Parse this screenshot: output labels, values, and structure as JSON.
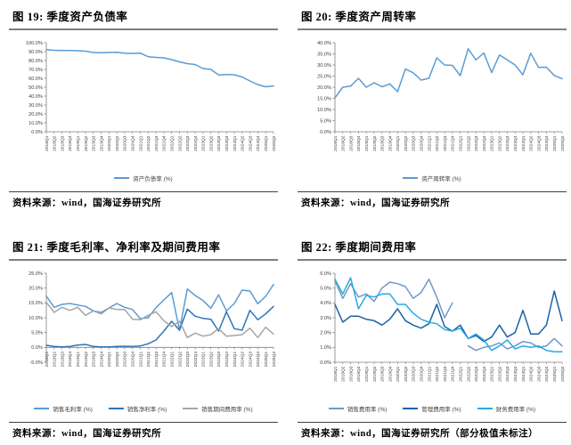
{
  "quarters": [
    "2018Q1",
    "2018Q2",
    "2018Q3",
    "2018Q4",
    "2019Q1",
    "2019Q2",
    "2019Q3",
    "2019Q4",
    "2020Q1",
    "2020Q2",
    "2020Q3",
    "2020Q4",
    "2021Q1",
    "2021Q2",
    "2021Q3",
    "2021Q4",
    "2022Q1",
    "2022Q2",
    "2022Q3",
    "2022Q4",
    "2023Q1",
    "2023Q2",
    "2023Q3",
    "2023Q4",
    "2024Q1",
    "2024Q2",
    "2024Q3",
    "2024Q4",
    "2025Q1",
    "2025Q2"
  ],
  "panels": [
    {
      "title": "图 19:  季度资产负债率",
      "source": "资料来源：wind，国海证券研究所"
    },
    {
      "title": "图 20:  季度资产周转率",
      "source": "资料来源：wind，国海证券研究所"
    },
    {
      "title": "图 21:  季度毛利率、净利率及期间费用率",
      "source": "资料来源：wind，国海证券研究所"
    },
    {
      "title": "图 22:  季度期间费用率",
      "source": "资料来源：wind，国海证券研究所（部分极值未标注）"
    }
  ],
  "colors": {
    "light_blue": "#5B9BD5",
    "dark_blue": "#2E75B6",
    "gray": "#A5A5A5",
    "steel_blue": "#7297C9",
    "navy_blue": "#1A62A8",
    "cyan_blue": "#29ABE2",
    "axis": "#808080",
    "tick_text": "#404040"
  },
  "chart_data": [
    {
      "type": "line",
      "title": "季度资产负债率",
      "xlabel": "",
      "ylabel": "",
      "ylim": [
        0,
        100
      ],
      "y_step": 10,
      "grid": false,
      "legend_position": "bottom",
      "series": [
        {
          "name": "资产负债率 (%)",
          "color": "#5B9BD5",
          "values": [
            92.3,
            91.5,
            91.3,
            91.2,
            91.0,
            90.5,
            89.0,
            88.7,
            89.0,
            89.3,
            88.2,
            88.0,
            88.3,
            84.3,
            83.5,
            83.0,
            81.0,
            78.5,
            76.5,
            75.5,
            71.0,
            70.0,
            63.8,
            64.3,
            64.0,
            61.5,
            57.0,
            53.0,
            50.5,
            51.5
          ]
        }
      ]
    },
    {
      "type": "line",
      "title": "季度资产周转率",
      "xlabel": "",
      "ylabel": "",
      "ylim": [
        0,
        40
      ],
      "y_step": 5,
      "grid": false,
      "legend_position": "bottom",
      "series": [
        {
          "name": "资产周转率 (%)",
          "color": "#5B9BD5",
          "values": [
            15.2,
            20.0,
            20.5,
            24.0,
            20.0,
            22.0,
            20.2,
            21.5,
            18.0,
            28.2,
            26.5,
            23.2,
            24.0,
            33.2,
            30.0,
            29.8,
            25.2,
            37.3,
            32.3,
            35.4,
            26.6,
            34.5,
            32.3,
            30.0,
            25.6,
            35.3,
            28.9,
            29.0,
            25.3,
            23.8
          ]
        }
      ]
    },
    {
      "type": "line",
      "title": "季度毛利率、净利率及期间费用率",
      "xlabel": "",
      "ylabel": "",
      "ylim": [
        -5,
        25
      ],
      "y_step": 5,
      "grid": false,
      "legend_position": "bottom",
      "series": [
        {
          "name": "销售毛利率 (%)",
          "color": "#5B9BD5",
          "values": [
            17.3,
            13.5,
            14.5,
            14.8,
            14.3,
            13.8,
            12.3,
            11.8,
            13.3,
            14.8,
            13.5,
            12.8,
            9.7,
            10.0,
            13.4,
            16.0,
            18.5,
            5.8,
            19.7,
            17.5,
            15.8,
            13.2,
            17.7,
            12.3,
            14.8,
            19.3,
            19.0,
            14.7,
            17.2,
            21.2
          ]
        },
        {
          "name": "销售净利率 (%)",
          "color": "#2E75B6",
          "values": [
            0.7,
            0.3,
            0.2,
            0.3,
            0.8,
            1.0,
            0.3,
            0.2,
            0.2,
            0.3,
            0.4,
            0.3,
            0.5,
            1.2,
            2.5,
            5.5,
            8.8,
            5.8,
            12.9,
            10.5,
            9.8,
            9.5,
            5.5,
            12.0,
            6.3,
            5.8,
            12.5,
            9.3,
            11.3,
            13.8
          ]
        },
        {
          "name": "销售期间费用率 (%)",
          "color": "#A5A5A5",
          "values": [
            15.2,
            11.8,
            13.5,
            12.5,
            13.5,
            10.8,
            12.3,
            11.3,
            13.3,
            12.8,
            12.8,
            9.5,
            9.3,
            10.8,
            12.0,
            9.0,
            7.0,
            8.8,
            3.3,
            4.8,
            3.8,
            4.3,
            6.3,
            3.8,
            4.0,
            4.3,
            6.5,
            3.3,
            6.8,
            4.5
          ]
        }
      ]
    },
    {
      "type": "line",
      "title": "季度期间费用率",
      "xlabel": "",
      "ylabel": "",
      "ylim": [
        0,
        6
      ],
      "y_step": 1,
      "grid": false,
      "legend_position": "bottom",
      "series": [
        {
          "name": "销售费用率 (%)",
          "color": "#7297C9",
          "values": [
            5.5,
            4.3,
            5.3,
            4.4,
            4.6,
            4.1,
            5.0,
            5.4,
            5.3,
            5.1,
            4.3,
            4.7,
            5.6,
            4.4,
            3.0,
            4.0,
            null,
            1.1,
            0.8,
            1.0,
            1.1,
            1.3,
            0.9,
            1.1,
            1.4,
            1.3,
            1.0,
            1.1,
            1.6,
            1.1
          ]
        },
        {
          "name": "管理费用率 (%)",
          "color": "#1A62A8",
          "values": [
            3.9,
            2.7,
            3.1,
            3.1,
            2.9,
            2.8,
            2.5,
            2.9,
            3.6,
            2.8,
            2.5,
            2.3,
            2.6,
            3.9,
            2.4,
            2.1,
            2.5,
            1.6,
            1.8,
            1.4,
            1.7,
            2.5,
            1.7,
            2.0,
            3.5,
            1.9,
            1.9,
            2.5,
            4.8,
            2.8
          ]
        },
        {
          "name": "财务费用率 (%)",
          "color": "#29ABE2",
          "values": [
            5.6,
            4.6,
            5.7,
            3.6,
            4.5,
            4.4,
            4.6,
            4.6,
            3.9,
            3.9,
            3.3,
            2.9,
            2.7,
            2.6,
            2.2,
            2.1,
            2.3,
            1.6,
            1.9,
            1.5,
            0.8,
            1.1,
            1.5,
            0.9,
            1.1,
            1.0,
            1.1,
            0.8,
            0.7,
            0.7
          ]
        }
      ]
    }
  ]
}
